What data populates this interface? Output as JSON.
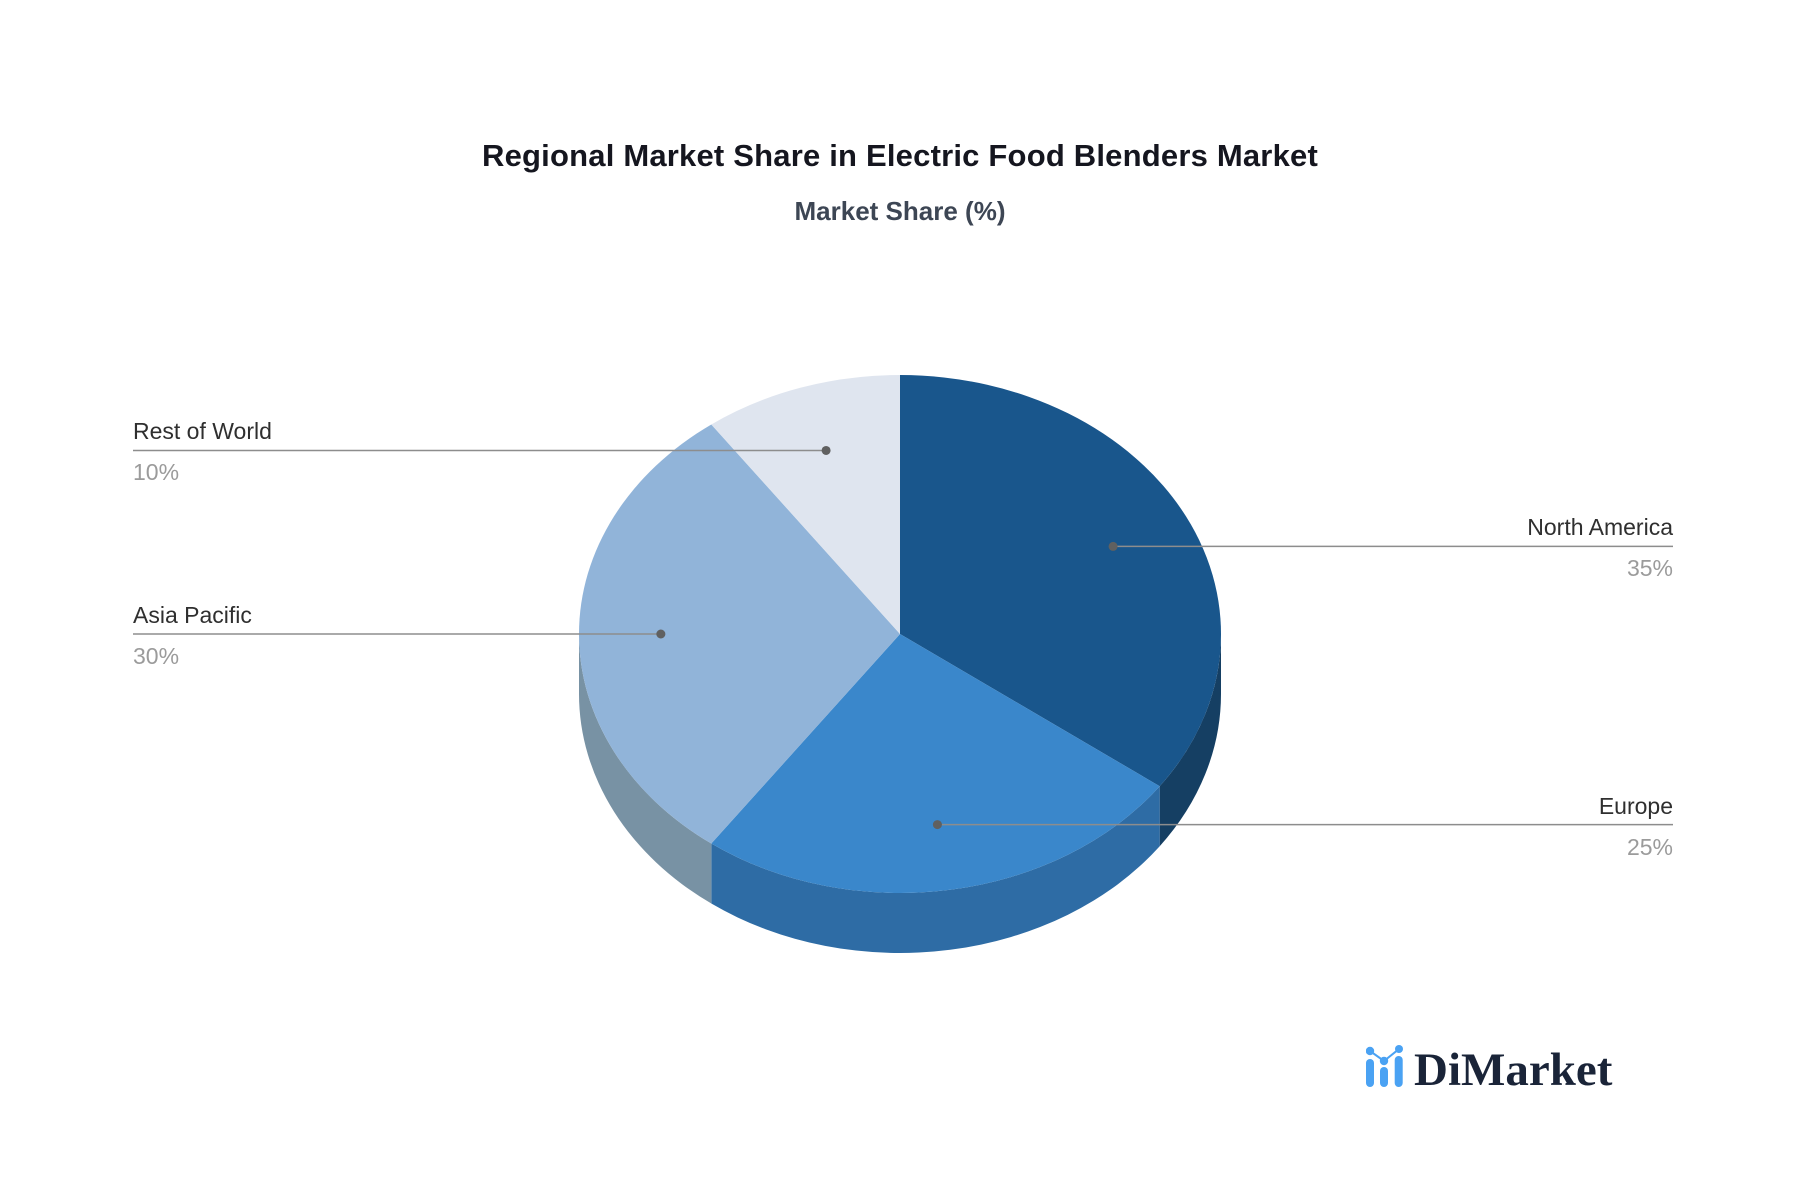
{
  "page": {
    "background": "#ffffff"
  },
  "chart_data": {
    "type": "pie",
    "title": "Regional Market Share in Electric Food Blenders Market",
    "subtitle": "Market Share (%)",
    "unit": "percent",
    "start_angle_deg": 0,
    "direction": "clockwise",
    "effect_3d": true,
    "legend_position": "callout-labels",
    "slices": [
      {
        "label": "North America",
        "value": 35,
        "value_label": "35%",
        "color": "#19568c",
        "side_color": "#153f63"
      },
      {
        "label": "Europe",
        "value": 25,
        "value_label": "25%",
        "color": "#3a87cb",
        "side_color": "#2e6ca5"
      },
      {
        "label": "Asia Pacific",
        "value": 30,
        "value_label": "30%",
        "color": "#91b4d9",
        "side_color": "#7892a4"
      },
      {
        "label": "Rest of World",
        "value": 10,
        "value_label": "10%",
        "color": "#dfe5ef",
        "side_color": "#b9c3d3"
      }
    ],
    "label_style": {
      "name_color": "#2f2f2f",
      "value_color": "#9b9b9b",
      "line_color": "#8d8d8d",
      "dot_color": "#606060"
    }
  },
  "logo": {
    "text": "DiMarket",
    "text_color": "#1a2438",
    "icon": "bar-line-chart-icon",
    "icon_color": "#4aa2f3"
  }
}
